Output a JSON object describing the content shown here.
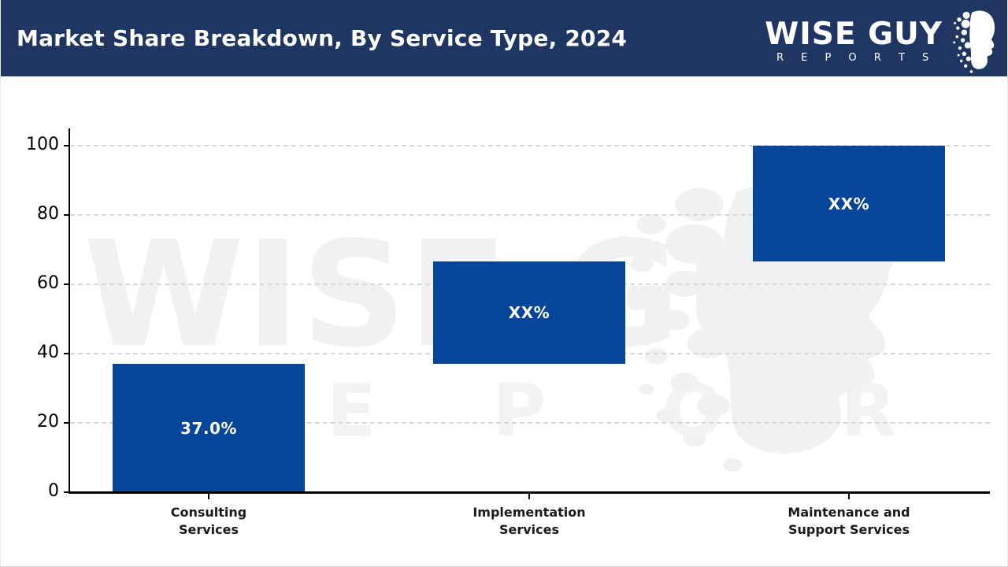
{
  "header": {
    "title": "Market Share Breakdown, By Service Type, 2024",
    "bg_color": "#1f3562",
    "logo": {
      "line1": "WISE GUY",
      "line2": "R E P O R T S"
    }
  },
  "watermark": {
    "line1": "WISE GUY",
    "line2": "R E P O R T S"
  },
  "chart_data": {
    "type": "bar",
    "subtype": "waterfall",
    "title": "Market Share Breakdown, By Service Type, 2024",
    "xlabel": "",
    "ylabel": "",
    "ylim": [
      0,
      105
    ],
    "yticks": [
      0,
      20,
      40,
      60,
      80,
      100
    ],
    "grid": "horizontal dashed",
    "legend": "none",
    "bar_color": "#05459a",
    "value_label_color": "#ffffff",
    "categories": [
      "Consulting Services",
      "Implementation Services",
      "Maintenance and Support Services"
    ],
    "segments": [
      {
        "category_lines": "Consulting\nServices",
        "start": 0.0,
        "end": 37.0,
        "value": 37.0,
        "label": "37.0%"
      },
      {
        "category_lines": "Implementation\nServices",
        "start": 37.0,
        "end": 66.5,
        "value": 29.5,
        "label": "XX%"
      },
      {
        "category_lines": "Maintenance and\nSupport Services",
        "start": 66.5,
        "end": 100.0,
        "value": 33.5,
        "label": "XX%"
      }
    ]
  }
}
